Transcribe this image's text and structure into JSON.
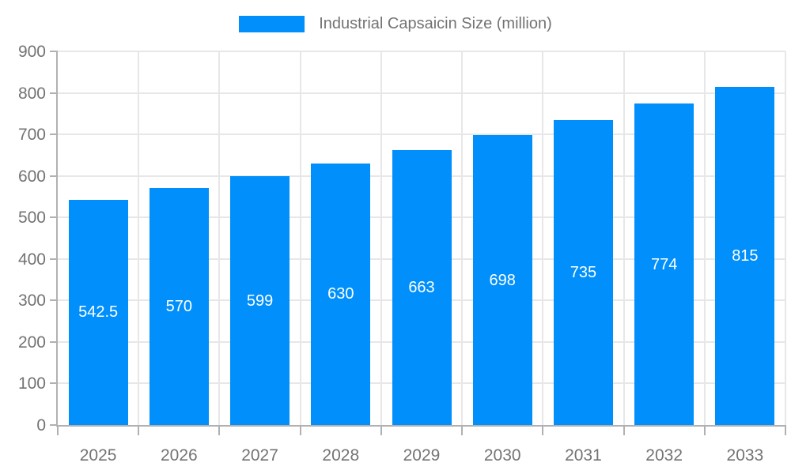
{
  "chart_data": {
    "type": "bar",
    "title": "Industrial Capsaicin Size (million)",
    "categories": [
      "2025",
      "2026",
      "2027",
      "2028",
      "2029",
      "2030",
      "2031",
      "2032",
      "2033"
    ],
    "values": [
      542.5,
      570,
      599,
      630,
      663,
      698,
      735,
      774,
      815
    ],
    "value_labels": [
      "542.5",
      "570",
      "599",
      "630",
      "663",
      "698",
      "735",
      "774",
      "815"
    ],
    "series_name": "Industrial Capsaicin Size (million)",
    "xlabel": "",
    "ylabel": "",
    "ylim": [
      0,
      900
    ],
    "y_ticks": [
      0,
      100,
      200,
      300,
      400,
      500,
      600,
      700,
      800,
      900
    ],
    "grid": "both",
    "legend_position": "top",
    "value_label_position": "center-of-bar"
  },
  "colors": {
    "bar": "#008FFB",
    "grid": "#e7e7e7",
    "axis": "#b1b1b1",
    "tick_text": "#737373",
    "legend_text": "#737373",
    "value_label": "#ffffff",
    "background": "#ffffff"
  }
}
